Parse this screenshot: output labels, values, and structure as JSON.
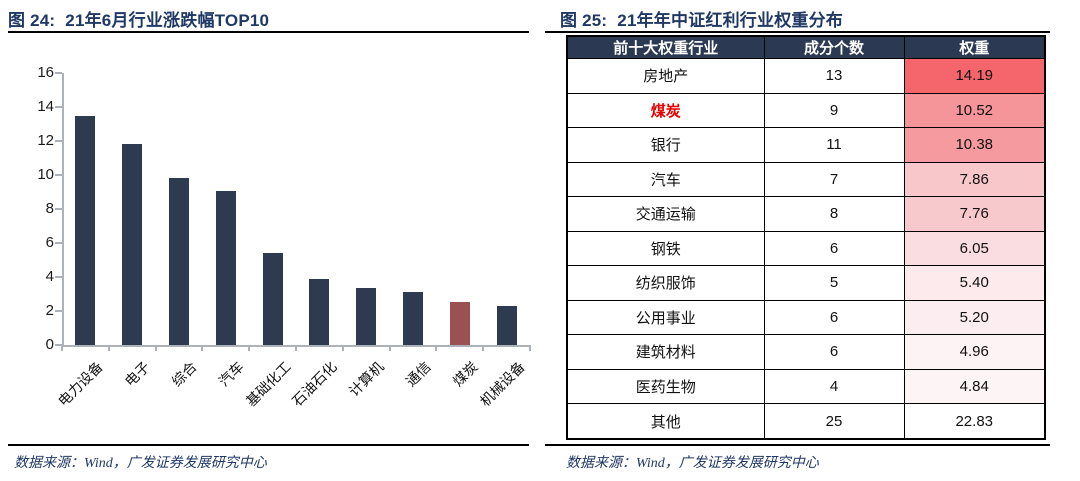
{
  "left_panel": {
    "title_prefix": "图 24:",
    "title": "21年6月行业涨跌幅TOP10",
    "source": "数据来源：Wind，广发证券发展研究中心"
  },
  "right_panel": {
    "title_prefix": "图 25:",
    "title": "21年年中证红利行业权重分布",
    "source": "数据来源：Wind，广发证券发展研究中心",
    "table": {
      "headers": [
        "前十大权重行业",
        "成分个数",
        "权重"
      ],
      "header_bg": "#2b3a52",
      "header_text_color": "#ffffff",
      "highlight_text_color": "#e60000",
      "rows": [
        {
          "industry": "房地产",
          "count": "13",
          "weight": "14.19",
          "weight_bg": "#f4666c",
          "highlight": false
        },
        {
          "industry": "煤炭",
          "count": "9",
          "weight": "10.52",
          "weight_bg": "#f5959a",
          "highlight": true
        },
        {
          "industry": "银行",
          "count": "11",
          "weight": "10.38",
          "weight_bg": "#f59a9e",
          "highlight": false
        },
        {
          "industry": "汽车",
          "count": "7",
          "weight": "7.86",
          "weight_bg": "#f8c7ca",
          "highlight": false
        },
        {
          "industry": "交通运输",
          "count": "8",
          "weight": "7.76",
          "weight_bg": "#f8c9cc",
          "highlight": false
        },
        {
          "industry": "钢铁",
          "count": "6",
          "weight": "6.05",
          "weight_bg": "#fadde0",
          "highlight": false
        },
        {
          "industry": "纺织服饰",
          "count": "5",
          "weight": "5.40",
          "weight_bg": "#fceaec",
          "highlight": false
        },
        {
          "industry": "公用事业",
          "count": "6",
          "weight": "5.20",
          "weight_bg": "#fceef0",
          "highlight": false
        },
        {
          "industry": "建筑材料",
          "count": "6",
          "weight": "4.96",
          "weight_bg": "#fdf3f4",
          "highlight": false
        },
        {
          "industry": "医药生物",
          "count": "4",
          "weight": "4.84",
          "weight_bg": "#fdf4f5",
          "highlight": false
        },
        {
          "industry": "其他",
          "count": "25",
          "weight": "22.83",
          "weight_bg": "#ffffff",
          "highlight": false
        }
      ]
    }
  },
  "chart_data": {
    "type": "bar",
    "title": "21年6月行业涨跌幅TOP10",
    "categories": [
      "电力设备",
      "电子",
      "综合",
      "汽车",
      "基础化工",
      "石油石化",
      "计算机",
      "通信",
      "煤炭",
      "机械设备"
    ],
    "values": [
      13.5,
      11.8,
      9.85,
      9.05,
      5.4,
      3.9,
      3.35,
      3.1,
      2.55,
      2.3
    ],
    "bar_color": "#2e3a50",
    "highlight_index": 8,
    "highlight_color": "#9b5152",
    "axis_color": "#adb2ba",
    "xlabel": "",
    "ylabel": "",
    "ylim": [
      0,
      16
    ],
    "ytick_step": 2,
    "grid": false,
    "legend": false
  }
}
